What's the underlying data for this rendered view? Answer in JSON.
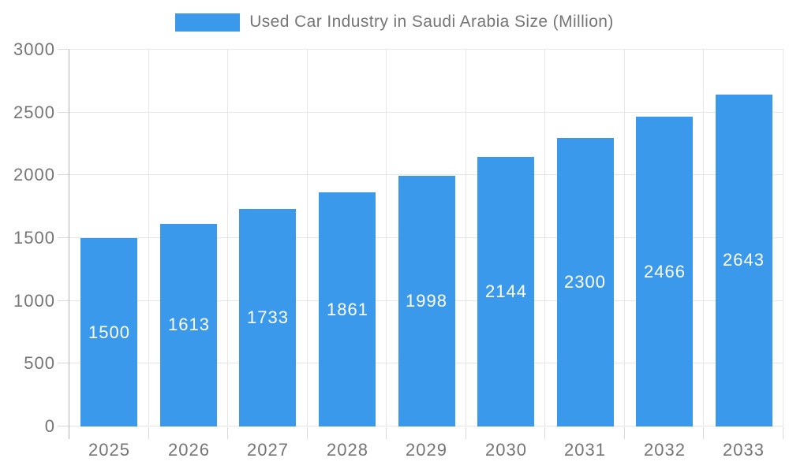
{
  "chart_data": {
    "type": "bar",
    "title": "Used Car Industry in Saudi Arabia Size (Million)",
    "categories": [
      "2025",
      "2026",
      "2027",
      "2028",
      "2029",
      "2030",
      "2031",
      "2032",
      "2033"
    ],
    "series": [
      {
        "name": "Used Car Industry in Saudi Arabia Size (Million)",
        "values": [
          1500,
          1613,
          1733,
          1861,
          1998,
          2144,
          2300,
          2466,
          2643
        ]
      }
    ],
    "bar_labels": [
      "1500",
      "1613",
      "1733",
      "1861",
      "1998",
      "2144",
      "2300",
      "2466",
      "2643"
    ],
    "xlabel": "",
    "ylabel": "",
    "ylim": [
      0,
      3000
    ],
    "ytick_step": 500,
    "ytick_labels": [
      "0",
      "500",
      "1000",
      "1500",
      "2000",
      "2500",
      "3000"
    ],
    "grid": true,
    "legend_position": "top",
    "colors": {
      "bar": "#3B99EC",
      "axis_text": "#757575",
      "value_label": "#FFFFFF",
      "gridline": "#E6E6E6",
      "axis_line": "#B3B3B3",
      "tick": "#D9D9D9",
      "background": "#FFFFFF"
    }
  }
}
